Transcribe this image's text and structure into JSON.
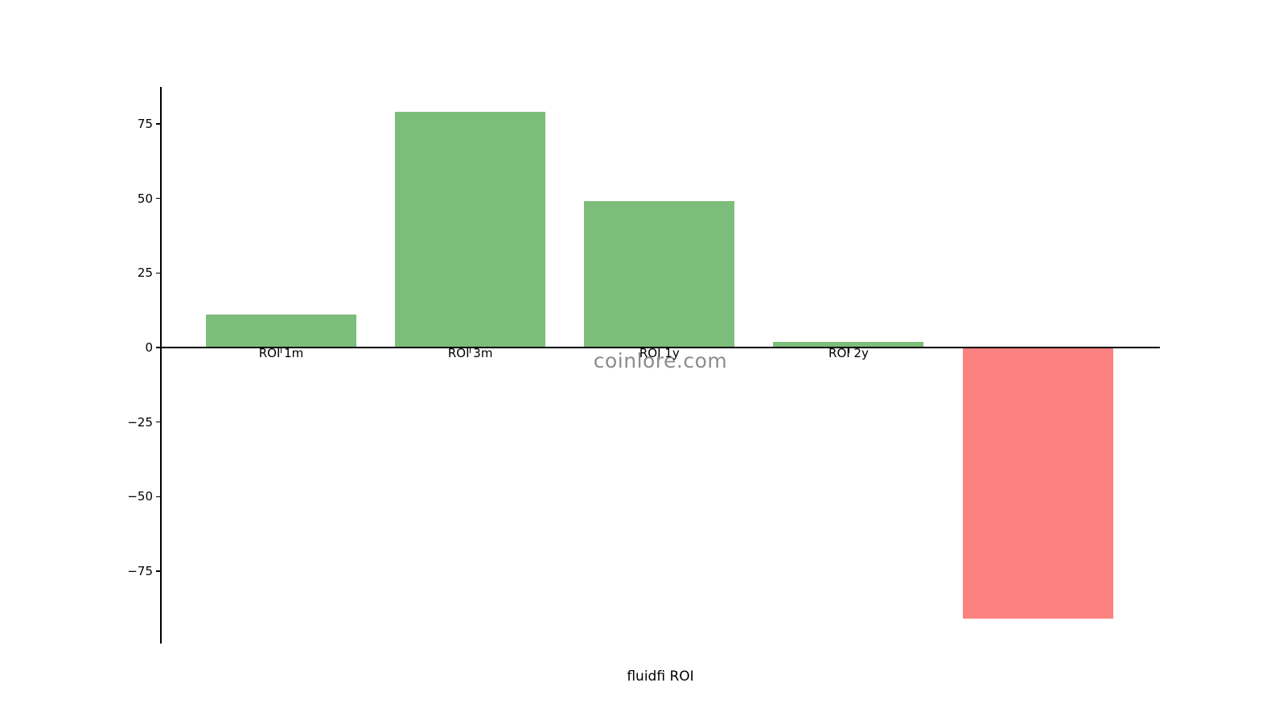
{
  "chart_data": {
    "type": "bar",
    "title": "fluidfi ROI",
    "watermark": "coinlore.com",
    "categories": [
      "ROI 1m",
      "ROI 3m",
      "ROI 1y",
      "ROI 2y",
      ""
    ],
    "values": [
      11,
      79,
      49,
      2,
      -91
    ],
    "yticks": [
      75,
      50,
      25,
      0,
      -25,
      -50,
      -75
    ],
    "ytick_labels": [
      "75",
      "50",
      "25",
      "0",
      "−25",
      "−50",
      "−75"
    ],
    "ylim": [
      -99.5,
      87.5
    ],
    "xlabel": "",
    "ylabel": "",
    "grid": false,
    "legend": false,
    "positive_color": "#7dbd7b",
    "negative_color": "#fc8181",
    "axis_color": "#000000",
    "text_color": "#000000",
    "watermark_color": "#8c8c8c"
  }
}
